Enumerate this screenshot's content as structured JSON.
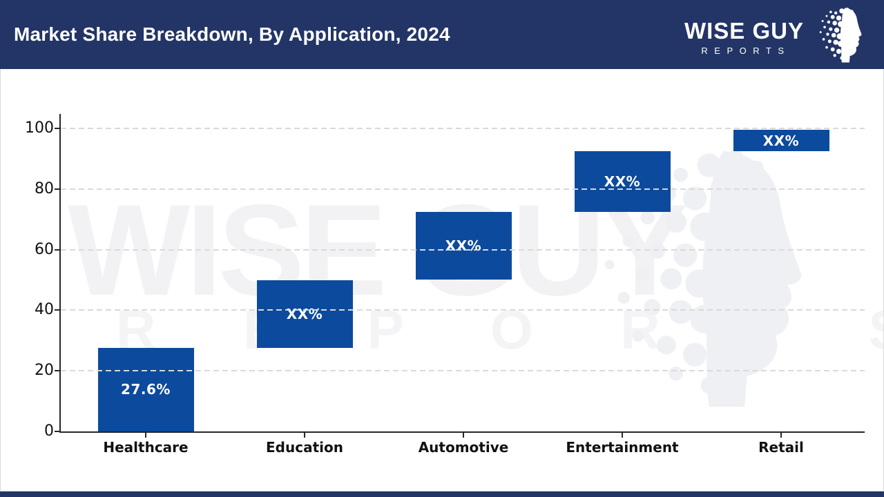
{
  "header": {
    "title": "Market Share Breakdown, By Application, 2024",
    "logo": {
      "line1": "WISE GUY",
      "line2": "REPORTS"
    }
  },
  "watermark": {
    "line1": "WISE GUY",
    "line2": "R E P O R T S"
  },
  "chart_data": {
    "type": "bar",
    "subtype": "waterfall",
    "title": "Market Share Breakdown, By Application, 2024",
    "categories": [
      "Healthcare",
      "Education",
      "Automotive",
      "Entertainment",
      "Retail"
    ],
    "segments": [
      {
        "category": "Healthcare",
        "start": 0,
        "end": 27.6,
        "value": 27.6,
        "label": "27.6%"
      },
      {
        "category": "Education",
        "start": 27.6,
        "end": 50.0,
        "value": 22.4,
        "label": "XX%"
      },
      {
        "category": "Automotive",
        "start": 50.0,
        "end": 72.5,
        "value": 22.5,
        "label": "XX%"
      },
      {
        "category": "Entertainment",
        "start": 72.5,
        "end": 92.5,
        "value": 20.0,
        "label": "XX%"
      },
      {
        "category": "Retail",
        "start": 92.5,
        "end": 99.5,
        "value": 7.0,
        "label": "XX%"
      }
    ],
    "xlabel": "",
    "ylabel": "",
    "ylim": [
      0,
      105
    ],
    "yticks": [
      0,
      20,
      40,
      60,
      80,
      100
    ],
    "grid": "horizontal-dashed, drawn over bars",
    "legend": "none",
    "bar_color": "#0c4a9d",
    "bar_label_color": "#ffffff"
  },
  "colors": {
    "header_bg": "#233566",
    "footer_bg": "#233566",
    "bar": "#0c4a9d",
    "axis": "#262626",
    "gridline": "#d9d9d9",
    "watermark": "#f2f2f4",
    "title_text": "#ffffff"
  }
}
